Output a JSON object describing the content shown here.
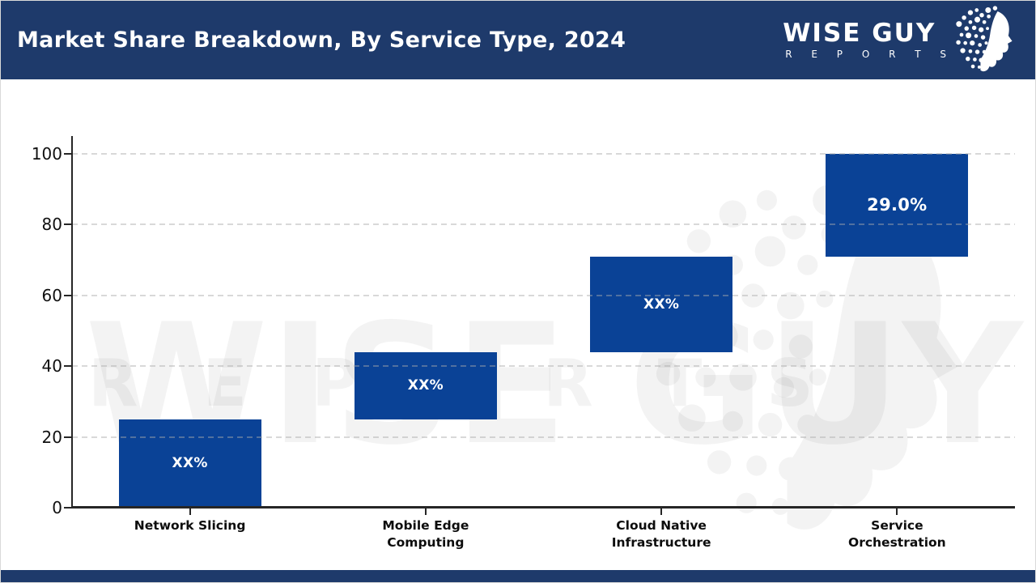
{
  "header": {
    "title": "Market Share Breakdown, By Service Type, 2024",
    "logo": {
      "brand_line1": "WISE GUY",
      "brand_line2": "R E P O R T S"
    }
  },
  "watermark": {
    "big_text": "WISE GUY",
    "sub_text": "R E P O R T S"
  },
  "colors": {
    "header_bg": "#1e3a6b",
    "footer_bg": "#1e3a6b",
    "bar": "#0a4296",
    "axis": "#262626",
    "gridline_over_white": "#d9d9d9",
    "title_text": "#ffffff",
    "bar_label_text": "#ffffff"
  },
  "chart_data": {
    "type": "bar",
    "subtype": "floating_waterfall",
    "title": "Market Share Breakdown, By Service Type, 2024",
    "xlabel": "",
    "ylabel": "",
    "ylim": [
      0,
      100
    ],
    "yticks": [
      0,
      20,
      40,
      60,
      80,
      100
    ],
    "grid": "horizontal-dashed",
    "legend": "none",
    "bar_color": "#0a4296",
    "categories": [
      "Network Slicing",
      "Mobile Edge Computing",
      "Cloud Native Infrastructure",
      "Service Orchestration"
    ],
    "segments": [
      {
        "category": "Network Slicing",
        "category_lines": [
          "Network Slicing"
        ],
        "start": 0,
        "end": 25,
        "value": 25,
        "label": "XX%"
      },
      {
        "category": "Mobile Edge Computing",
        "category_lines": [
          "Mobile Edge",
          "Computing"
        ],
        "start": 25,
        "end": 44,
        "value": 19,
        "label": "XX%"
      },
      {
        "category": "Cloud Native Infrastructure",
        "category_lines": [
          "Cloud Native",
          "Infrastructure"
        ],
        "start": 44,
        "end": 71,
        "value": 27,
        "label": "XX%"
      },
      {
        "category": "Service Orchestration",
        "category_lines": [
          "Service",
          "Orchestration"
        ],
        "start": 71,
        "end": 100,
        "value": 29,
        "label": "29.0%"
      }
    ]
  }
}
